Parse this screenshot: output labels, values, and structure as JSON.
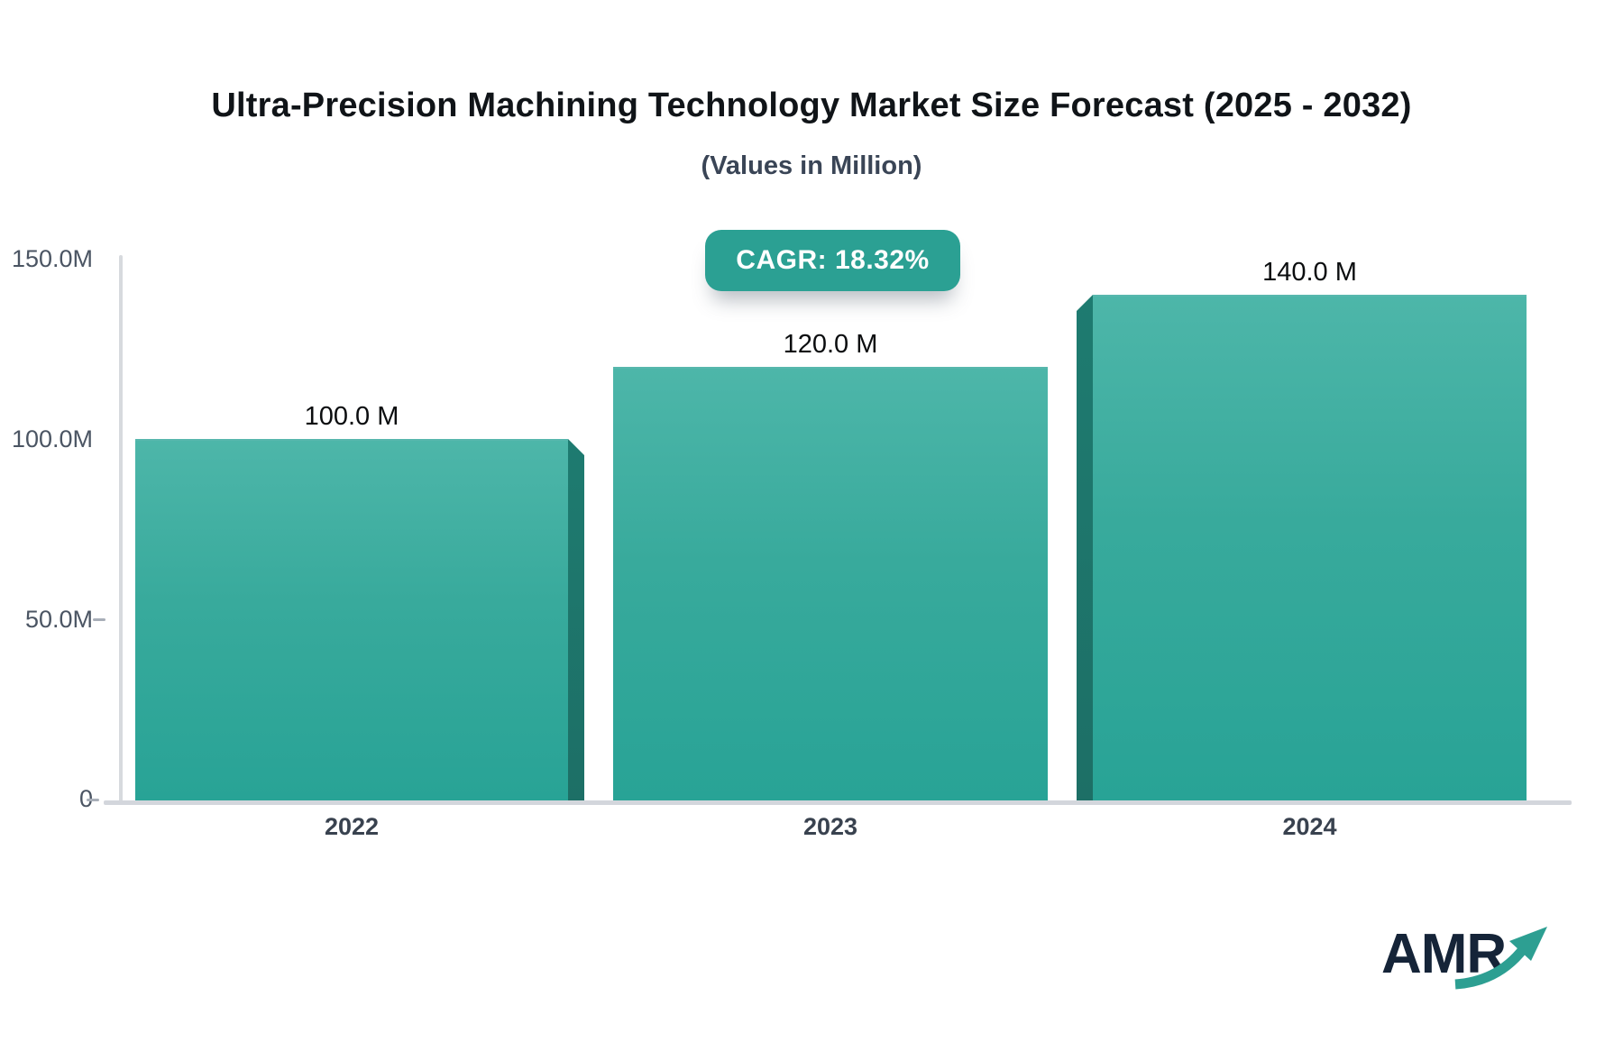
{
  "chart_data": {
    "type": "bar",
    "title": "Ultra-Precision Machining Technology Market Size Forecast (2025 - 2032)",
    "subtitle": "(Values in Million)",
    "unit": "Million",
    "categories": [
      "2022",
      "2023",
      "2024"
    ],
    "values": [
      100.0,
      120.0,
      140.0
    ],
    "bar_labels": [
      "100.0 M",
      "120.0 M",
      "140.0 M"
    ],
    "y_ticks": [
      "150.0M",
      "100.0M",
      "50.0M",
      "0"
    ],
    "y_tick_values": [
      150,
      100,
      50,
      0
    ],
    "ylim": [
      0,
      150
    ],
    "grid": false,
    "legend": false,
    "annotations": [
      "CAGR: 18.32%"
    ],
    "bar_color_top": "#4db6a9",
    "bar_color_bottom": "#28a396",
    "bar_side_color": "#1e7b70"
  },
  "badge": {
    "label": "CAGR: 18.32%",
    "bg_color": "#2ba093",
    "text_color": "#ffffff"
  },
  "branding": {
    "logo_text": "AMR",
    "logo_text_color": "#152438",
    "arrow_color": "#2d9f92"
  },
  "colors": {
    "axis_line": "#d5d8dd",
    "tick_label": "#4b5563",
    "title": "#101418",
    "subtitle": "#3a4556"
  }
}
